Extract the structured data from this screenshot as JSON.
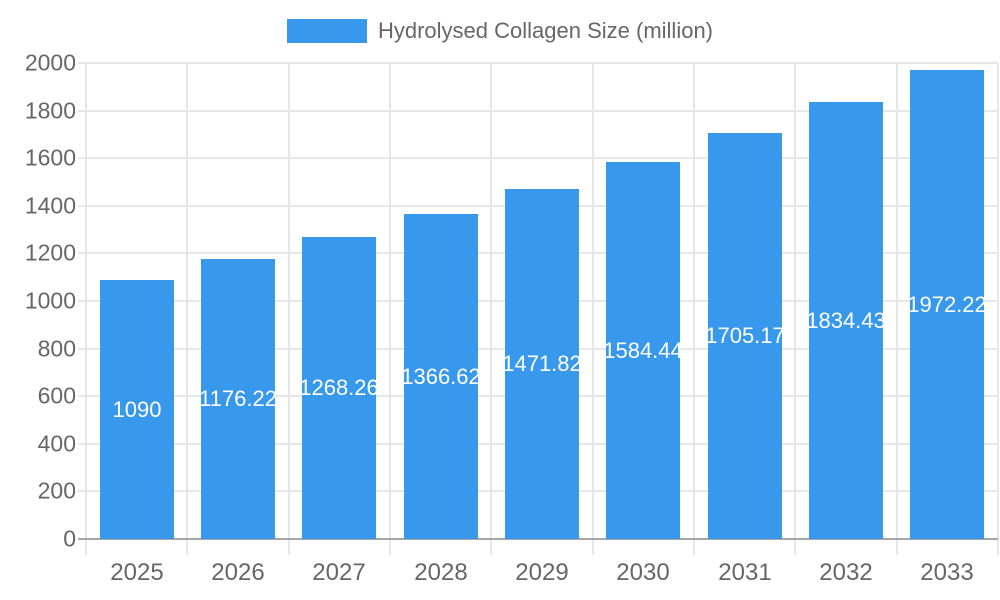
{
  "legend": {
    "label": "Hydrolysed Collagen Size (million)"
  },
  "colors": {
    "bar": "#3898EC",
    "axis_text": "#666666",
    "grid": "#E7E7E7",
    "zero_line": "#A6A6A6",
    "value_label": "#FFFFFF",
    "background": "#FFFFFF"
  },
  "chart_data": {
    "type": "bar",
    "title": "",
    "xlabel": "",
    "ylabel": "",
    "categories": [
      "2025",
      "2026",
      "2027",
      "2028",
      "2029",
      "2030",
      "2031",
      "2032",
      "2033"
    ],
    "series": [
      {
        "name": "Hydrolysed Collagen Size (million)",
        "values": [
          1090,
          1176.22,
          1268.26,
          1366.62,
          1471.82,
          1584.44,
          1705.17,
          1834.43,
          1972.22
        ],
        "labels": [
          "1090",
          "1176.22",
          "1268.26",
          "1366.62",
          "1471.82",
          "1584.44",
          "1705.17",
          "1834.43",
          "1972.22"
        ]
      }
    ],
    "ylim": [
      0,
      2000
    ],
    "ytick_step": 200,
    "yticks": [
      0,
      200,
      400,
      600,
      800,
      1000,
      1200,
      1400,
      1600,
      1800,
      2000
    ],
    "grid": true,
    "legend_position": "top",
    "value_labels": "white, centered inside bars, clipped at bar edges"
  }
}
